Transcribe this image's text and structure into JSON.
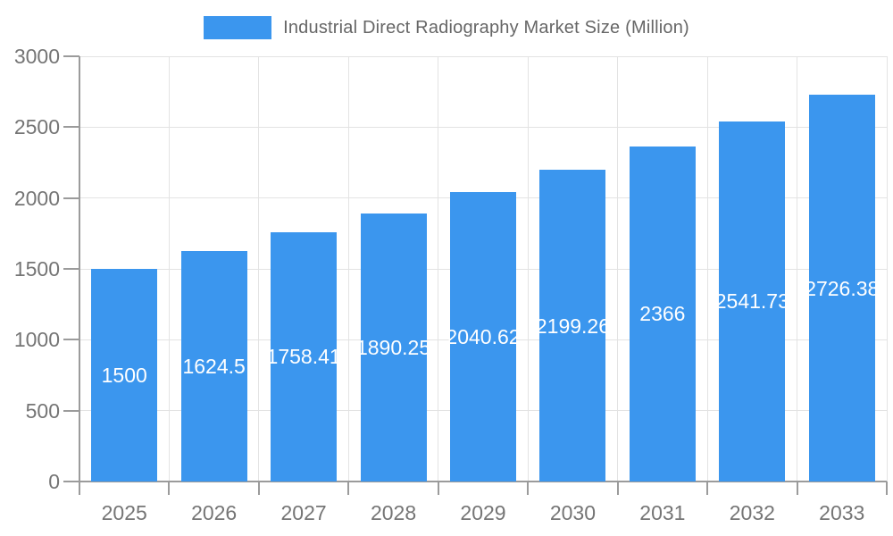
{
  "legend": {
    "label": "Industrial Direct Radiography Market Size (Million)"
  },
  "chart_data": {
    "type": "bar",
    "title": "Industrial Direct Radiography Market Size (Million)",
    "categories": [
      "2025",
      "2026",
      "2027",
      "2028",
      "2029",
      "2030",
      "2031",
      "2032",
      "2033"
    ],
    "values": [
      1500,
      1624.5,
      1758.41,
      1890.25,
      2040.62,
      2199.26,
      2366,
      2541.73,
      2726.38
    ],
    "value_labels": [
      "1500",
      "1624.5",
      "1758.41",
      "1890.25",
      "2040.62",
      "2199.26",
      "2366",
      "2541.73",
      "2726.38"
    ],
    "series": [
      {
        "name": "Industrial Direct Radiography Market Size (Million)",
        "values": [
          1500,
          1624.5,
          1758.41,
          1890.25,
          2040.62,
          2199.26,
          2366,
          2541.73,
          2726.38
        ]
      }
    ],
    "xlabel": "",
    "ylabel": "",
    "ylim": [
      0,
      3000
    ],
    "ytick_step": 500,
    "ytick_labels": [
      "0",
      "500",
      "1000",
      "1500",
      "2000",
      "2500",
      "3000"
    ],
    "grid": true,
    "legend_position": "top",
    "value_labels_position": "center-inside-bar",
    "colors": {
      "bar": "#3b96ee",
      "grid": "#e3e3e3",
      "axis": "#9b9b9b",
      "tick_text": "#757575",
      "legend_text": "#666666",
      "bar_label": "#ffffff",
      "background": "#ffffff"
    }
  }
}
